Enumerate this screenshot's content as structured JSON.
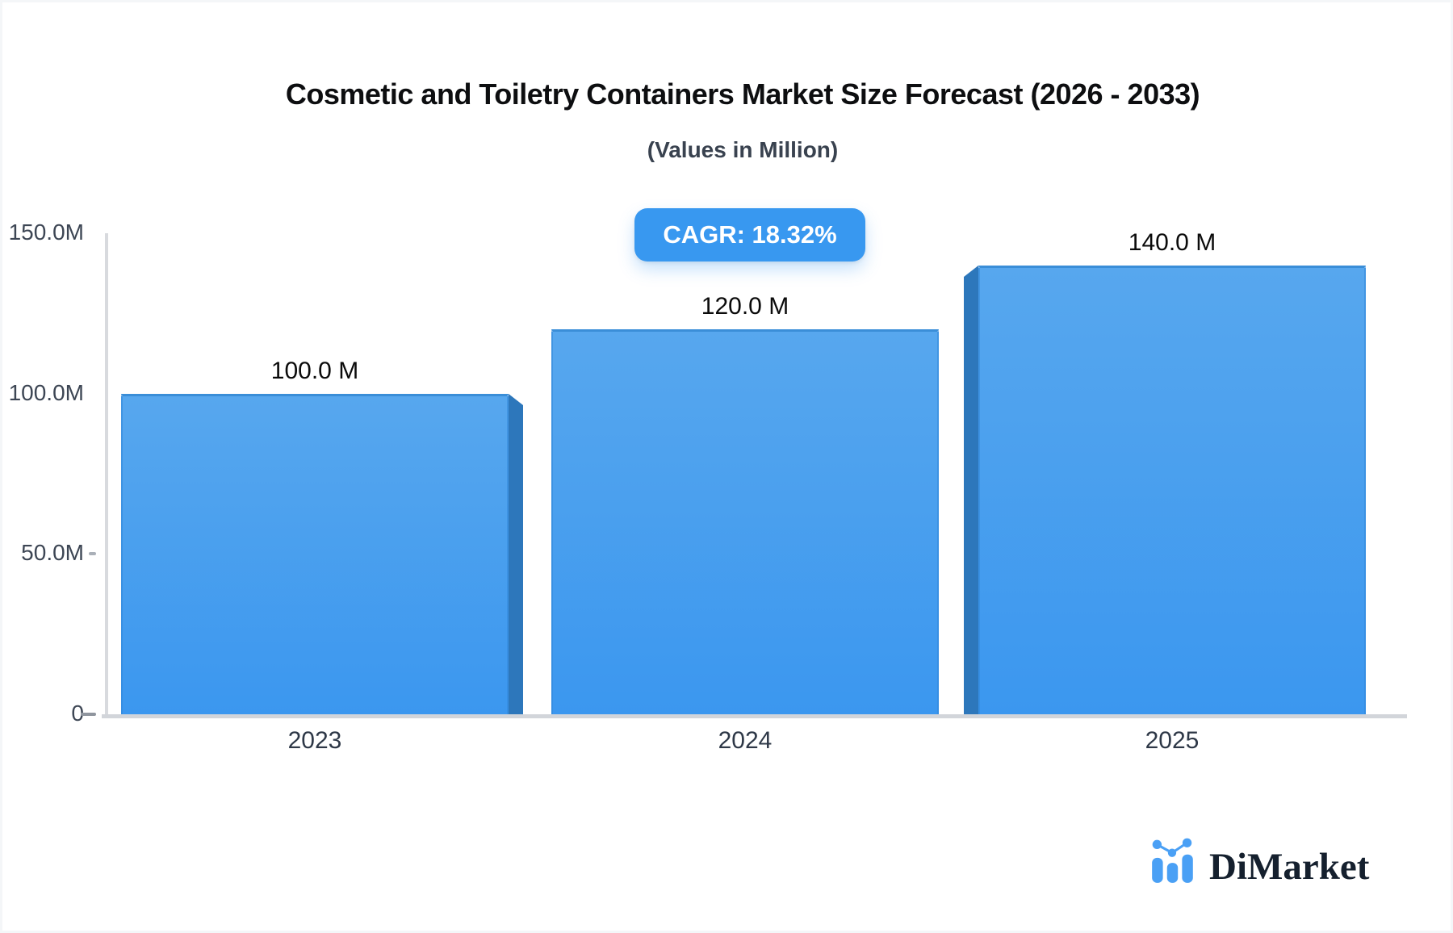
{
  "header": {
    "title": "Cosmetic and Toiletry Containers Market Size Forecast (2026 - 2033)",
    "subtitle": "(Values in Million)"
  },
  "badge": {
    "label": "CAGR: 18.32%",
    "color": "#3898f0"
  },
  "chart_data": {
    "type": "bar",
    "title": "Cosmetic and Toiletry Containers Market Size Forecast (2026 - 2033)",
    "subtitle": "(Values in Million)",
    "categories": [
      "2023",
      "2024",
      "2025"
    ],
    "values": [
      100,
      120,
      140
    ],
    "value_labels": [
      "100.0 M",
      "120.0 M",
      "140.0 M"
    ],
    "unit": "Million",
    "ylim": [
      0,
      150
    ],
    "yticks": [
      150,
      100,
      50,
      0
    ],
    "ytick_labels": [
      "150.0M",
      "100.0M",
      "50.0M",
      "0"
    ],
    "grid": false,
    "legend": "none",
    "bar_extrusion_sides": [
      "right",
      "none",
      "left"
    ],
    "colors": {
      "bar_top": "#57a7ee",
      "bar_bottom": "#3b97ef",
      "bar_side_3d": "#2d77bb",
      "axis": "#d2d5da",
      "tick_text": "#3d4654",
      "value_text": "#0b0b0b"
    }
  },
  "footer": {
    "brand": "DiMarket",
    "brand_color": "#15202e",
    "logo_icon": "bar-chart-logo-icon",
    "icon_color": "#4aa0f5"
  }
}
